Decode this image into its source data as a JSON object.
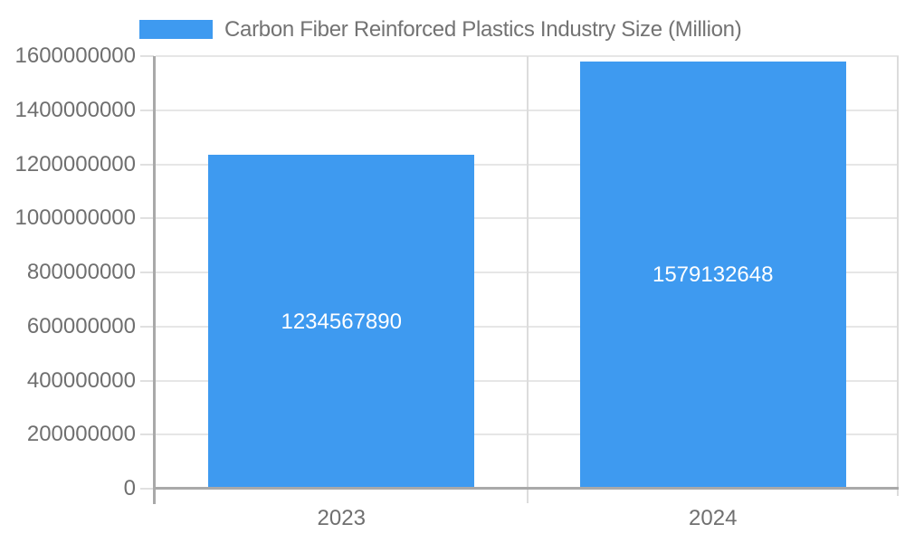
{
  "legend": {
    "label": "Carbon Fiber Reinforced Plastics Industry Size (Million)"
  },
  "chart_data": {
    "type": "bar",
    "title": "Carbon Fiber Reinforced Plastics Industry Size (Million)",
    "categories": [
      "2023",
      "2024"
    ],
    "series": [
      {
        "name": "Carbon Fiber Reinforced Plastics Industry Size (Million)",
        "values": [
          1234567890,
          1579132648
        ]
      }
    ],
    "value_labels": [
      "1234567890",
      "1579132648"
    ],
    "xlabel": "",
    "ylabel": "",
    "ylim": [
      0,
      1600000000
    ],
    "ytick_step": 200000000,
    "ytick_labels": [
      "0",
      "200000000",
      "400000000",
      "600000000",
      "800000000",
      "1000000000",
      "1200000000",
      "1400000000",
      "1600000000"
    ],
    "grid": true,
    "legend_position": "top"
  },
  "colors": {
    "bar": "#3E9AF0",
    "grid_line": "#E6E6E6",
    "vertical_grid_line": "#DCDCDC",
    "axis_line": "#A9A9A9",
    "tick": "#E0E0E0",
    "axis_text": "#6F6F6F",
    "legend_text": "#737373",
    "value_label_text": "#FFFFFF",
    "background": "#FFFFFF"
  }
}
